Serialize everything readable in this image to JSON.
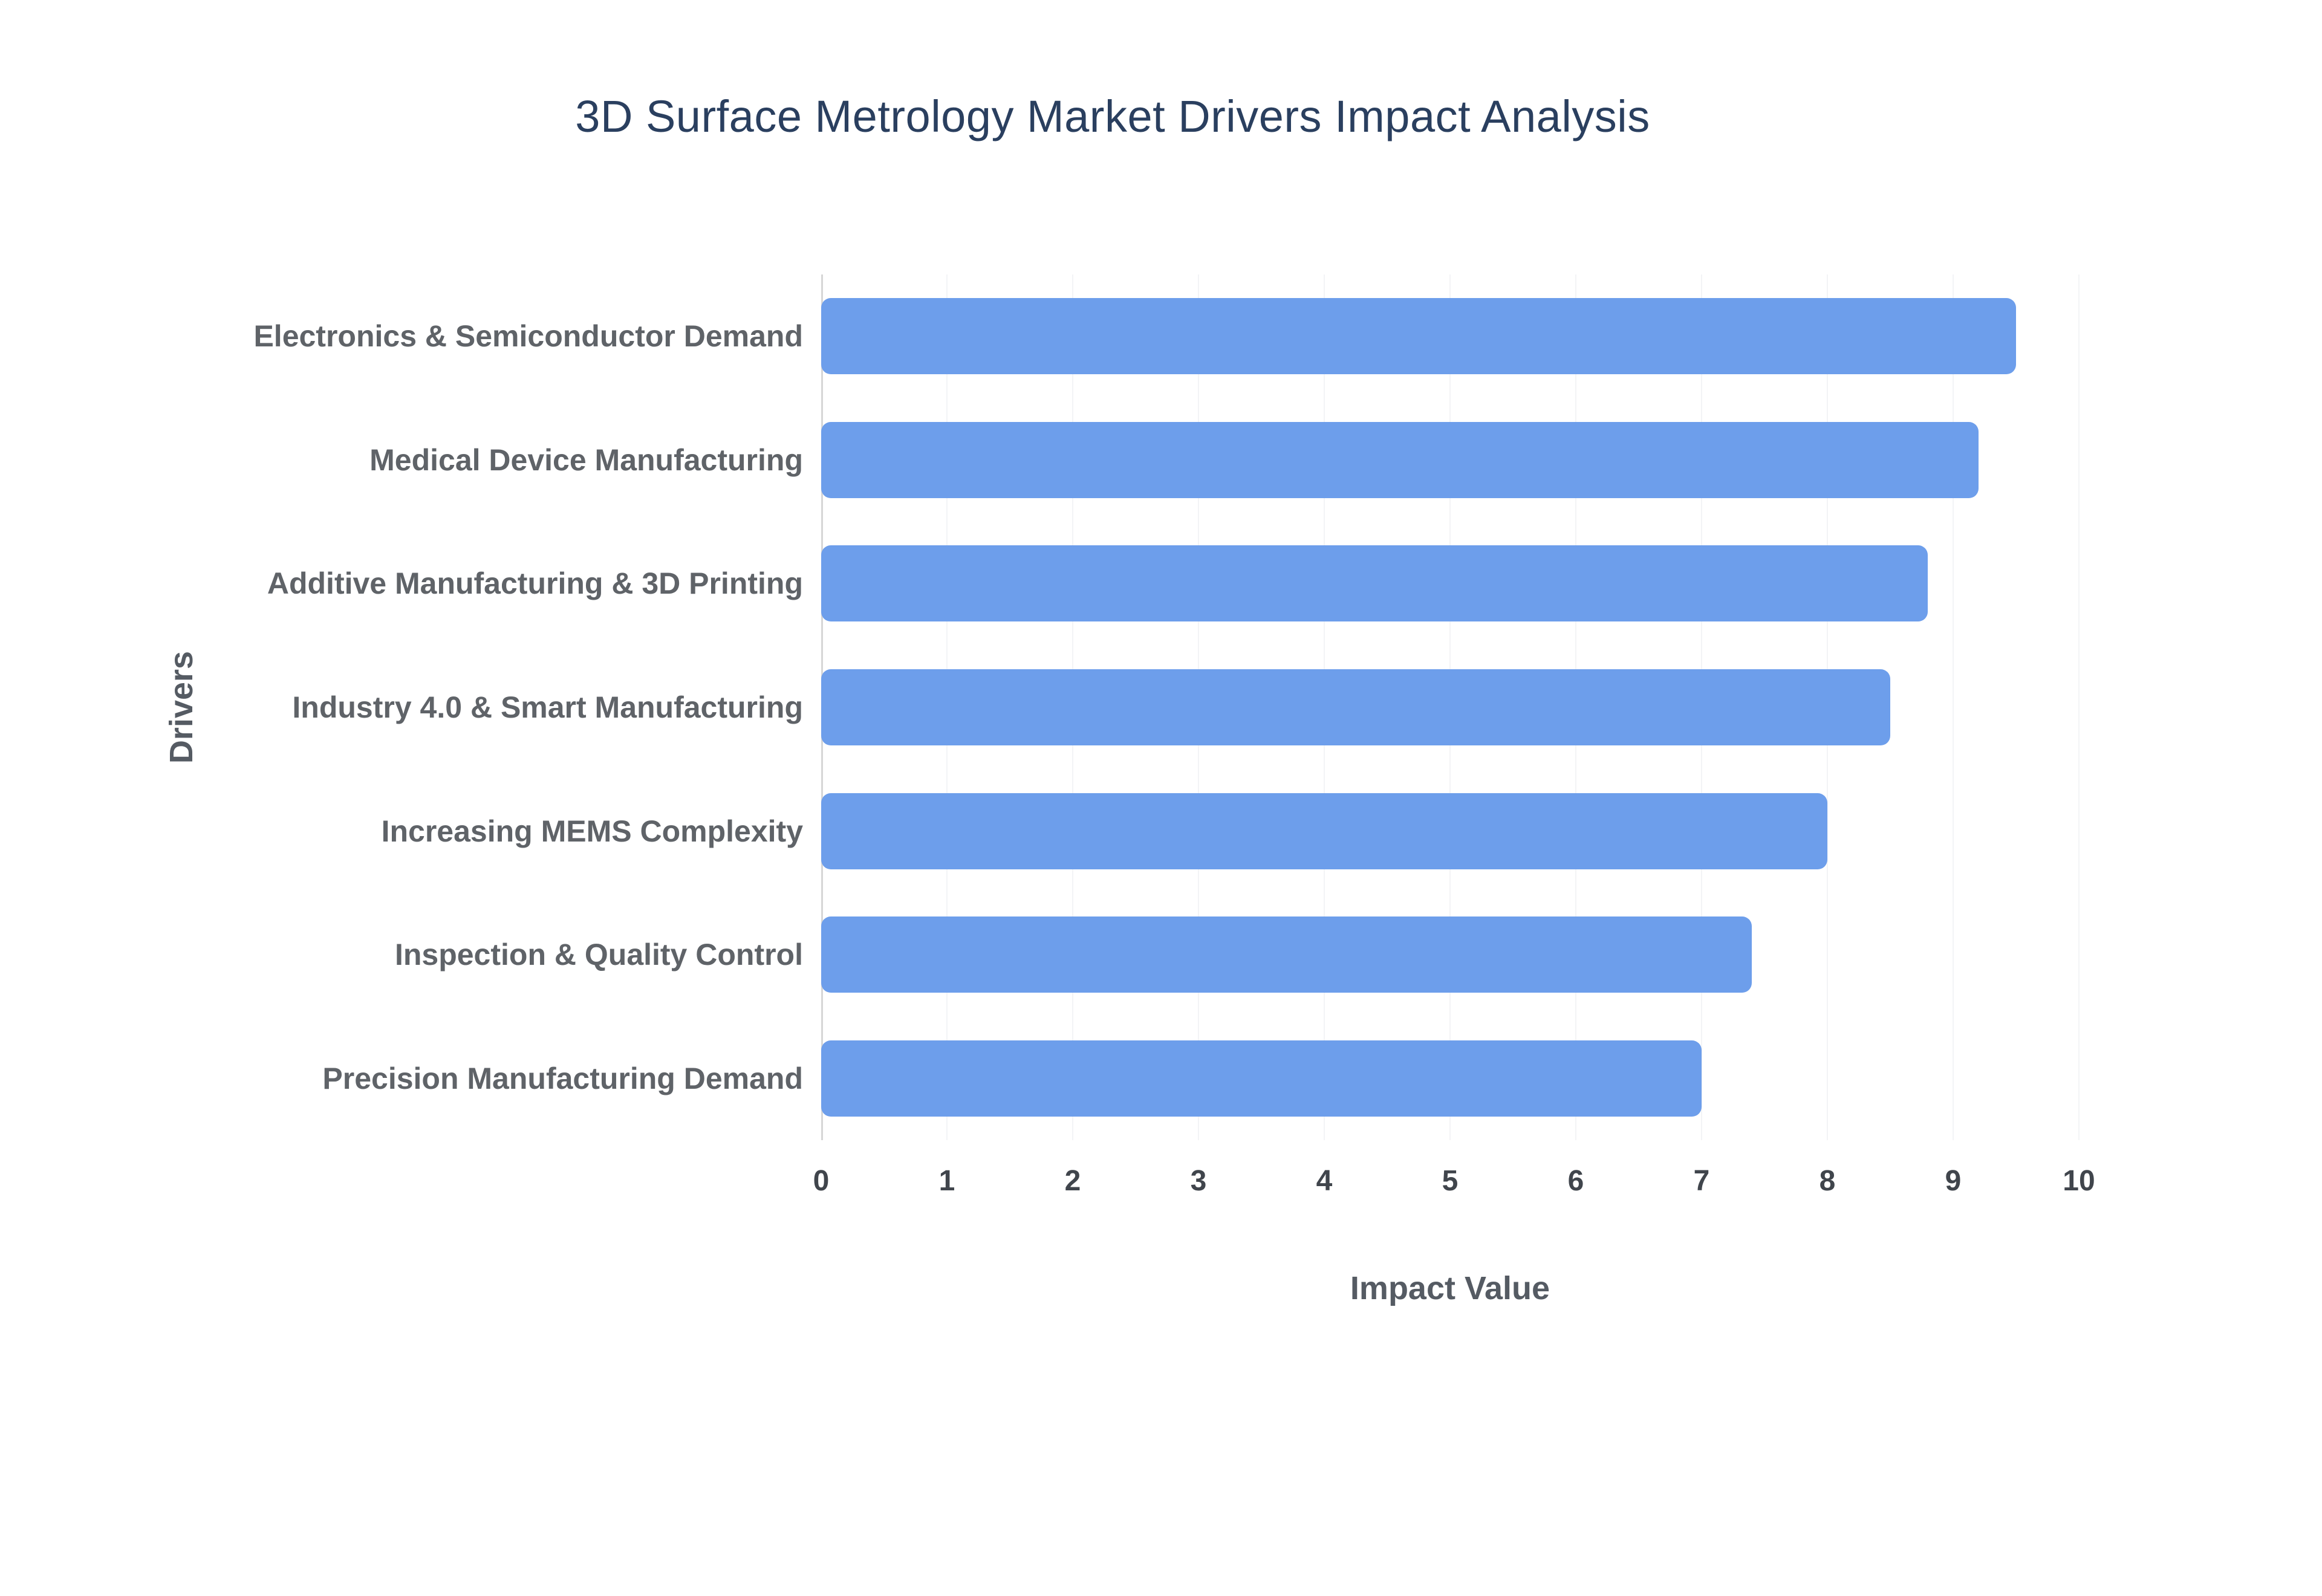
{
  "title": "3D Surface Metrology Market Drivers Impact Analysis",
  "colors": {
    "bar": "#6D9EEB",
    "title": "#2a3f5f",
    "axis_label": "#555b63",
    "tick_label": "#40454c",
    "category_label": "#5f6368",
    "axis_line": "#d6d6d6",
    "gridline": "#f3f4f6"
  },
  "chart_data": {
    "type": "bar",
    "orientation": "horizontal",
    "title": "3D Surface Metrology Market Drivers Impact Analysis",
    "categories": [
      "Electronics & Semiconductor Demand",
      "Medical Device Manufacturing",
      "Additive Manufacturing & 3D Printing",
      "Industry 4.0 & Smart Manufacturing",
      "Increasing MEMS Complexity",
      "Inspection & Quality Control",
      "Precision Manufacturing Demand"
    ],
    "values": [
      9.5,
      9.2,
      8.8,
      8.5,
      8.0,
      7.4,
      7.0
    ],
    "xlabel": "Impact Value",
    "ylabel": "Drivers",
    "xlim": [
      0,
      10
    ],
    "xticks": [
      0,
      1,
      2,
      3,
      4,
      5,
      6,
      7,
      8,
      9,
      10
    ],
    "grid": false,
    "legend": false
  }
}
